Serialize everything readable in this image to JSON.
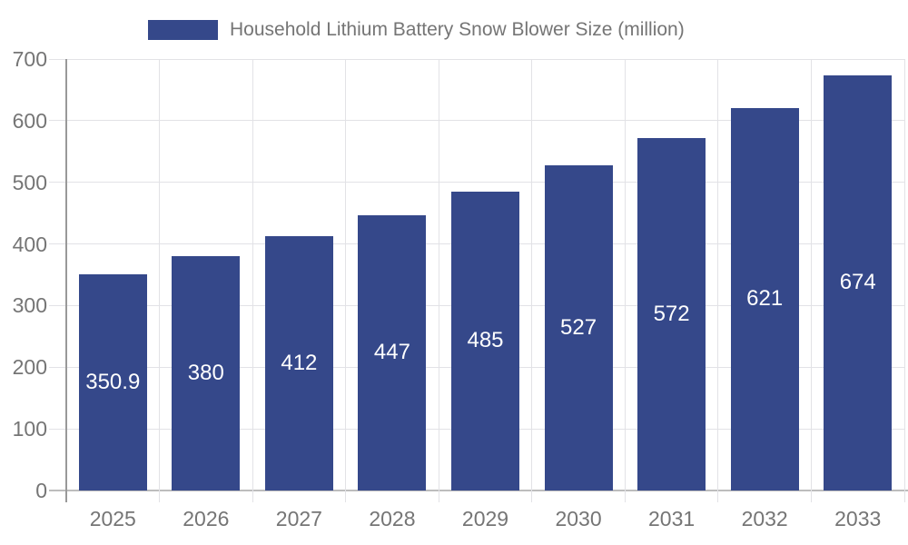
{
  "legend": {
    "label": "Household Lithium Battery Snow Blower Size (million)"
  },
  "colors": {
    "bar": "#35488a",
    "grid": "#e2e2e6",
    "x_axis_line": "#bdbdbd",
    "y_axis_line": "#999999",
    "tick_label": "#757575",
    "legend_text": "#757575",
    "value_label": "#ffffff",
    "background": "#ffffff"
  },
  "chart_data": {
    "type": "bar",
    "title": "Household Lithium Battery Snow Blower Size (million)",
    "xlabel": "",
    "ylabel": "",
    "categories": [
      "2025",
      "2026",
      "2027",
      "2028",
      "2029",
      "2030",
      "2031",
      "2032",
      "2033"
    ],
    "values": [
      350.9,
      380,
      412,
      447,
      485,
      527,
      572,
      621,
      674
    ],
    "value_labels": [
      "350.9",
      "380",
      "412",
      "447",
      "485",
      "527",
      "572",
      "621",
      "674"
    ],
    "ylim": [
      0,
      700
    ],
    "yticks": [
      0,
      100,
      200,
      300,
      400,
      500,
      600,
      700
    ],
    "grid": "both",
    "legend_position": "top",
    "bar_label_position": "inside-middle"
  }
}
